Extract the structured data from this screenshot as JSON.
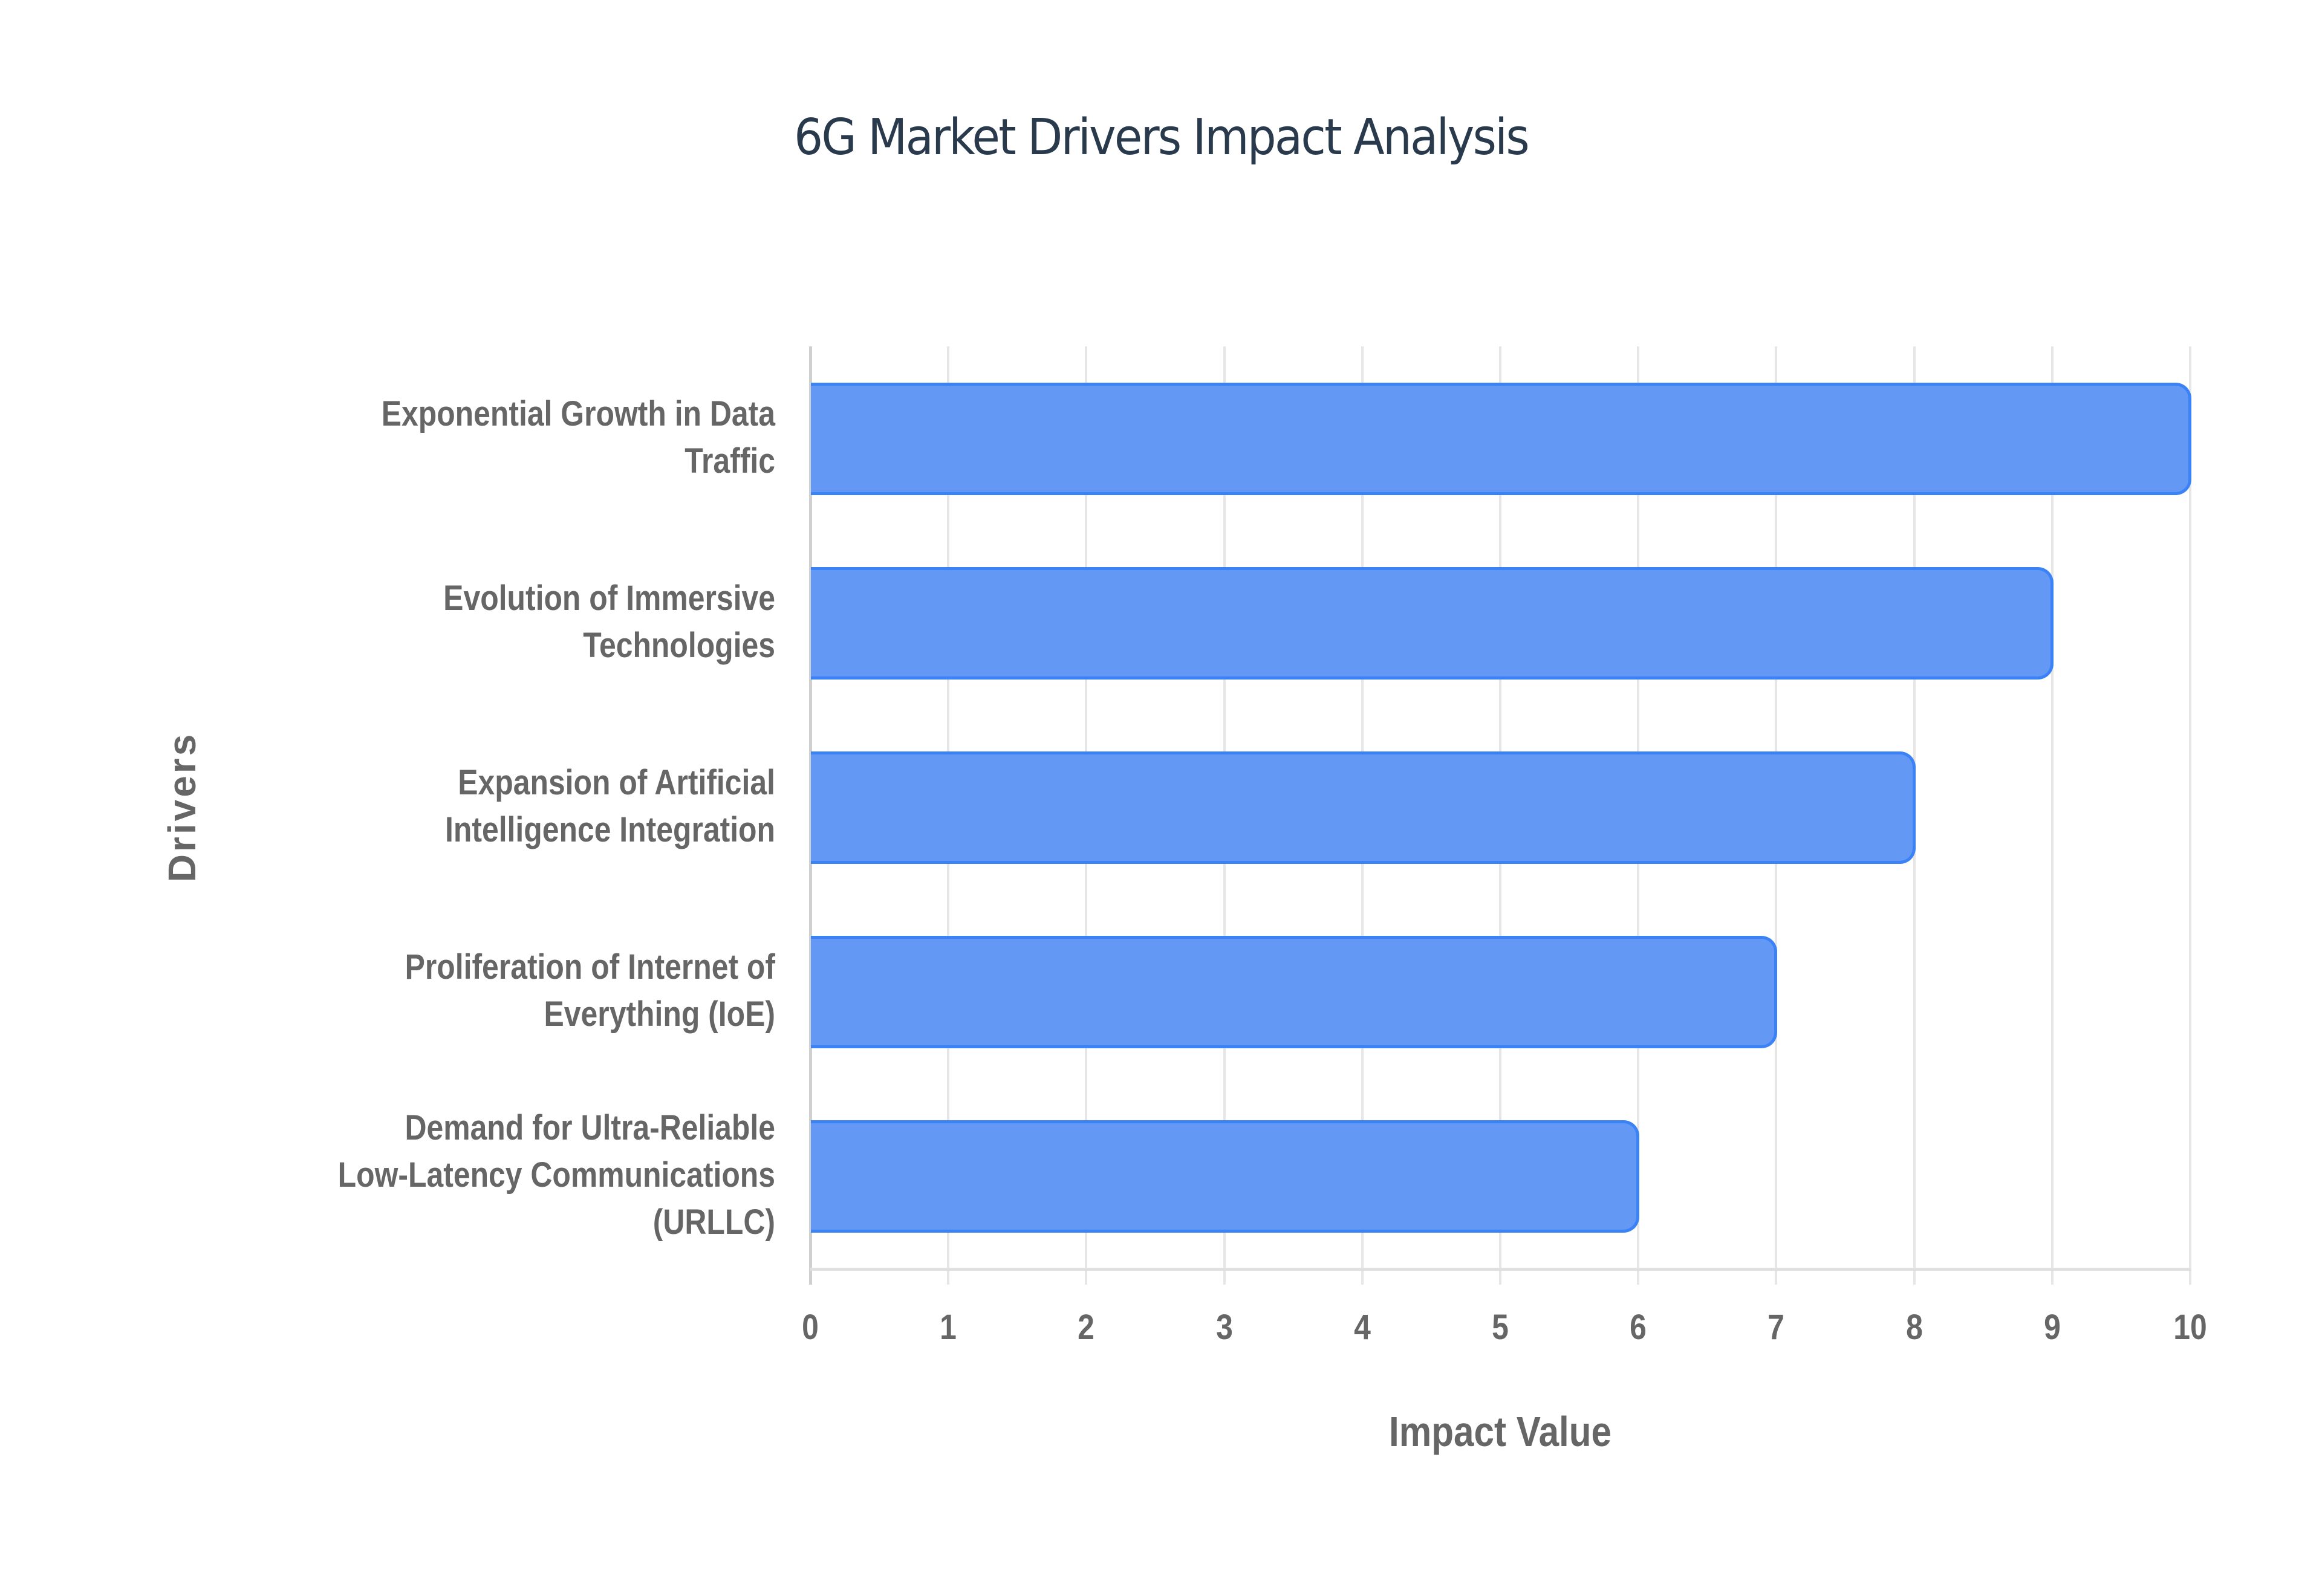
{
  "chart_data": {
    "type": "bar",
    "orientation": "horizontal",
    "title": "6G Market Drivers Impact Analysis",
    "xlabel": "Impact Value",
    "ylabel": "Drivers",
    "xlim": [
      0,
      10
    ],
    "x_ticks": [
      "0",
      "1",
      "2",
      "3",
      "4",
      "5",
      "6",
      "7",
      "8",
      "9",
      "10"
    ],
    "grid": true,
    "legend": null,
    "bar_color": "#6399f5",
    "bar_border_color": "#3b82f6",
    "categories": [
      "Exponential Growth in Data Traffic",
      "Evolution of Immersive Technologies",
      "Expansion of Artificial Intelligence Integration",
      "Proliferation of Internet of Everything (IoE)",
      "Demand for Ultra-Reliable Low-Latency Communications (URLLC)"
    ],
    "values": [
      10,
      9,
      8,
      7,
      6
    ]
  },
  "labels": [
    {
      "line1": "Exponential Growth in Data",
      "line2": "Traffic",
      "line3": ""
    },
    {
      "line1": "Evolution of Immersive",
      "line2": "Technologies",
      "line3": ""
    },
    {
      "line1": "Expansion of Artificial",
      "line2": "Intelligence Integration",
      "line3": ""
    },
    {
      "line1": "Proliferation of Internet of",
      "line2": "Everything (IoE)",
      "line3": ""
    },
    {
      "line1": "Demand for Ultra-Reliable",
      "line2": "Low-Latency Communications",
      "line3": "(URLLC)"
    }
  ]
}
